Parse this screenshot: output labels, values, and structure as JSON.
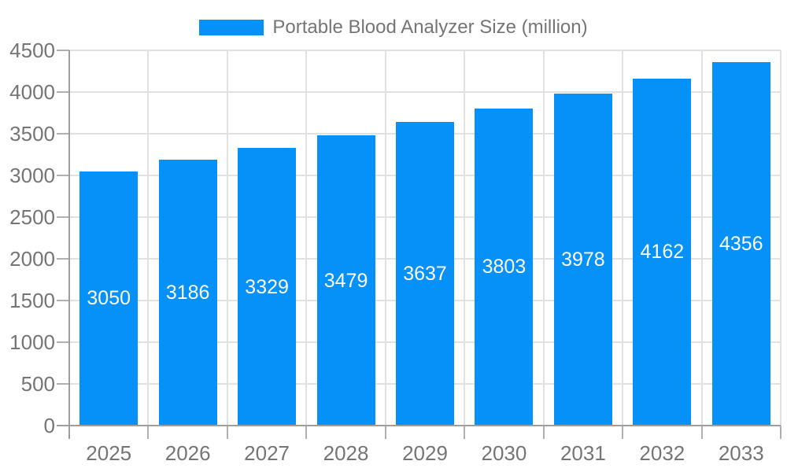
{
  "chart_data": {
    "type": "bar",
    "title": "Portable Blood Analyzer Size (million)",
    "legend": {
      "label": "Portable Blood Analyzer Size (million)",
      "position": "top-center"
    },
    "categories": [
      "2025",
      "2026",
      "2027",
      "2028",
      "2029",
      "2030",
      "2031",
      "2032",
      "2033"
    ],
    "series": [
      {
        "name": "Portable Blood Analyzer Size (million)",
        "values": [
          3050,
          3186,
          3329,
          3479,
          3637,
          3803,
          3978,
          4162,
          4356
        ]
      }
    ],
    "xlabel": "",
    "ylabel": "",
    "ylim": [
      0,
      4500
    ],
    "yticks": [
      0,
      500,
      1000,
      1500,
      2000,
      2500,
      3000,
      3500,
      4000,
      4500
    ],
    "grid": true,
    "value_labels_position": "inside-middle",
    "colors": {
      "bar": "#0591f8",
      "grid": "#e1e1e1",
      "axis": "#9e9e9e",
      "tick": "#b0b0b0",
      "label_text": "#757575",
      "value_label_text": "#ffffff",
      "background": "#ffffff"
    }
  }
}
